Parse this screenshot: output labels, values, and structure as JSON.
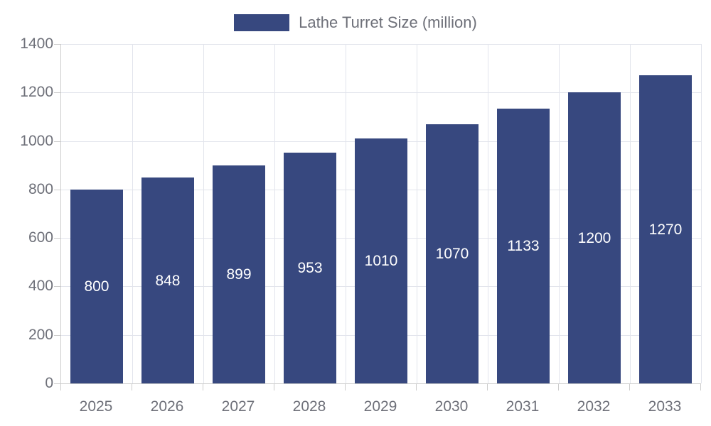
{
  "chart_data": {
    "type": "bar",
    "title": "Lathe Turret Size (million)",
    "legend": {
      "label": "Lathe Turret Size (million)",
      "position": "top"
    },
    "categories": [
      "2025",
      "2026",
      "2027",
      "2028",
      "2029",
      "2030",
      "2031",
      "2032",
      "2033"
    ],
    "series": [
      {
        "name": "Lathe Turret Size (million)",
        "values": [
          800,
          848,
          899,
          953,
          1010,
          1070,
          1133,
          1200,
          1270
        ]
      }
    ],
    "xlabel": "",
    "ylabel": "",
    "ylim": [
      0,
      1400
    ],
    "yticks": [
      0,
      200,
      400,
      600,
      800,
      1000,
      1200,
      1400
    ],
    "grid": true,
    "value_labels_position": "inside-center",
    "colors": {
      "bar": "#37487F",
      "value_label": "#FFFFFF",
      "axis_text": "#6E7079",
      "grid_line": "#E2E4EC",
      "axis_line": "#CCCCCC",
      "background": "#FFFFFF"
    }
  }
}
